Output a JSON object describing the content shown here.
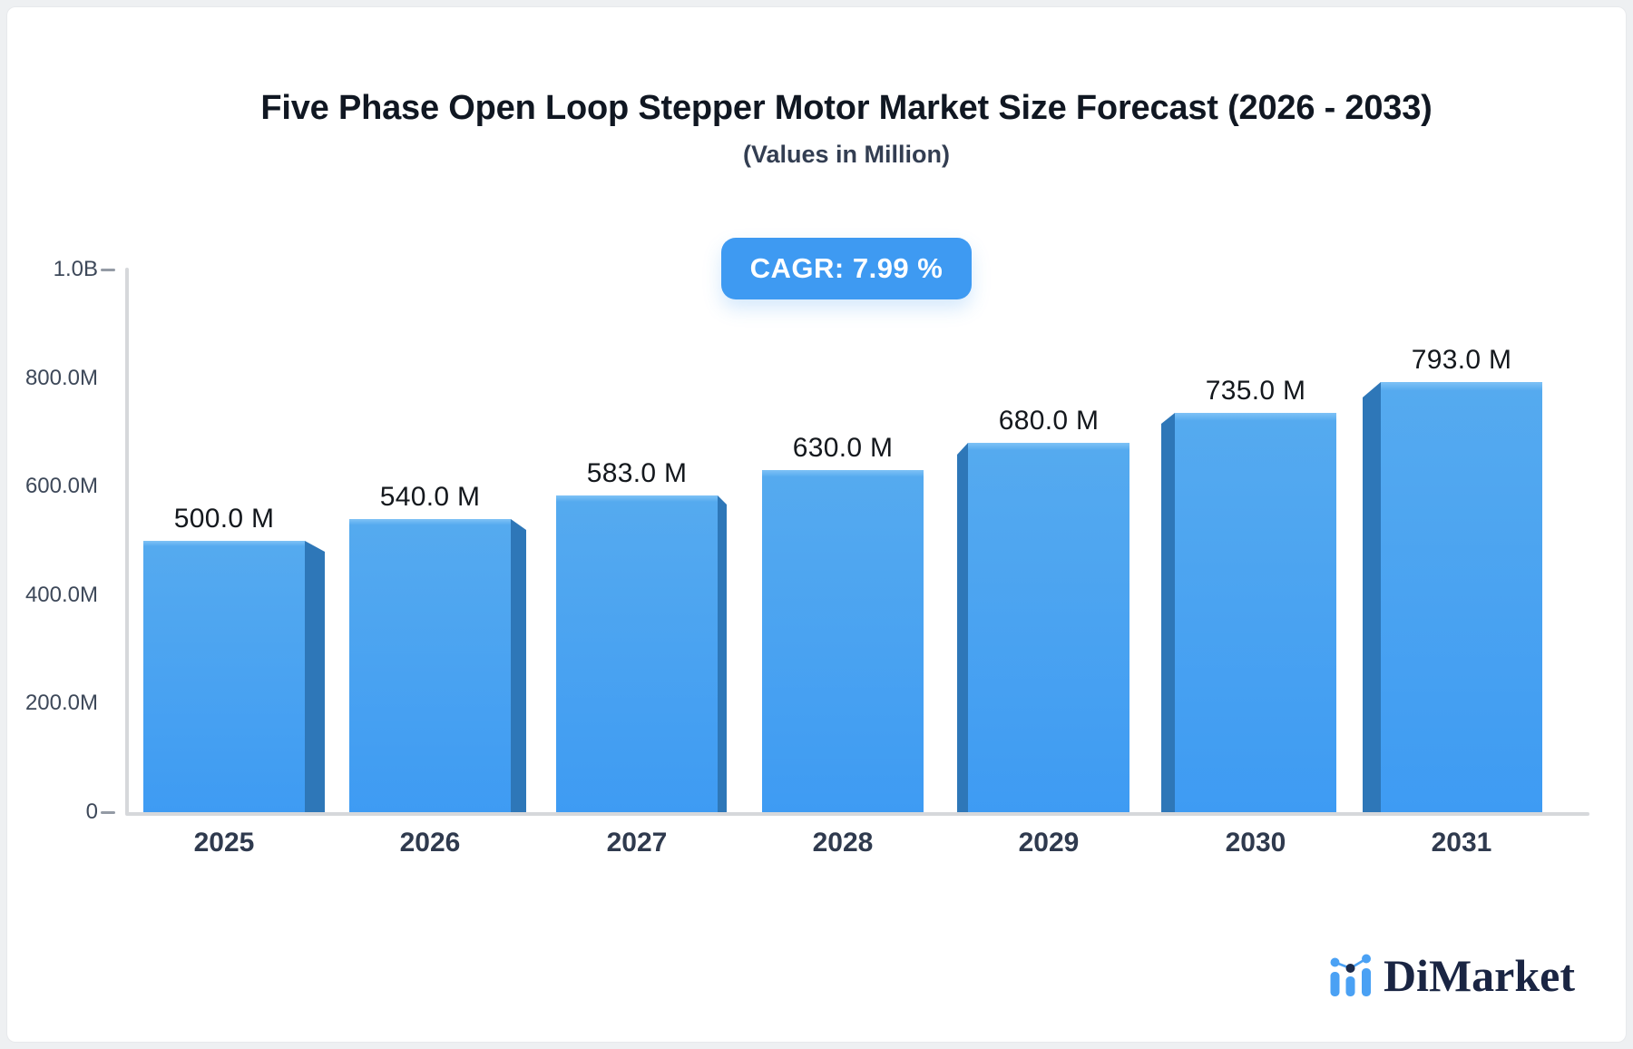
{
  "chart_data": {
    "type": "bar",
    "title": "Five Phase Open Loop Stepper Motor Market Size Forecast (2026 - 2033)",
    "subtitle": "(Values in Million)",
    "cagr_label": "CAGR: 7.99 %",
    "categories": [
      "2025",
      "2026",
      "2027",
      "2028",
      "2029",
      "2030",
      "2031"
    ],
    "values": [
      500,
      540,
      583,
      630,
      680,
      735,
      793
    ],
    "value_labels": [
      "500.0 M",
      "540.0 M",
      "583.0 M",
      "630.0 M",
      "680.0 M",
      "735.0 M",
      "793.0 M"
    ],
    "y_ticks": [
      {
        "value": 1000,
        "label": "1.0B",
        "tick": true
      },
      {
        "value": 800,
        "label": "800.0M",
        "tick": false
      },
      {
        "value": 600,
        "label": "600.0M",
        "tick": false
      },
      {
        "value": 400,
        "label": "400.0M",
        "tick": false
      },
      {
        "value": 200,
        "label": "200.0M",
        "tick": false
      },
      {
        "value": 0,
        "label": "0",
        "tick": true
      }
    ],
    "ylim": [
      0,
      1000
    ],
    "grid": false,
    "legend": null,
    "colors": {
      "bar_face_top": "#55aaef",
      "bar_face_bottom": "#3e9bf3",
      "bar_face_edge": "#7fc2f6",
      "bar_side": "#2e77b8",
      "axis_line": "#d6d8db",
      "tick": "#949ba5",
      "badge_bg": "#3e9af2",
      "badge_text": "#ffffff",
      "title_text": "#101722",
      "subtitle_text": "#333e52",
      "value_label_text": "#14181d",
      "x_label_text": "#2f3a4e",
      "y_label_text": "#3d4859",
      "logo_blue": "#4aa1f4",
      "logo_navy": "#1c2a4a"
    }
  },
  "logo": {
    "text": "DiMarket"
  }
}
